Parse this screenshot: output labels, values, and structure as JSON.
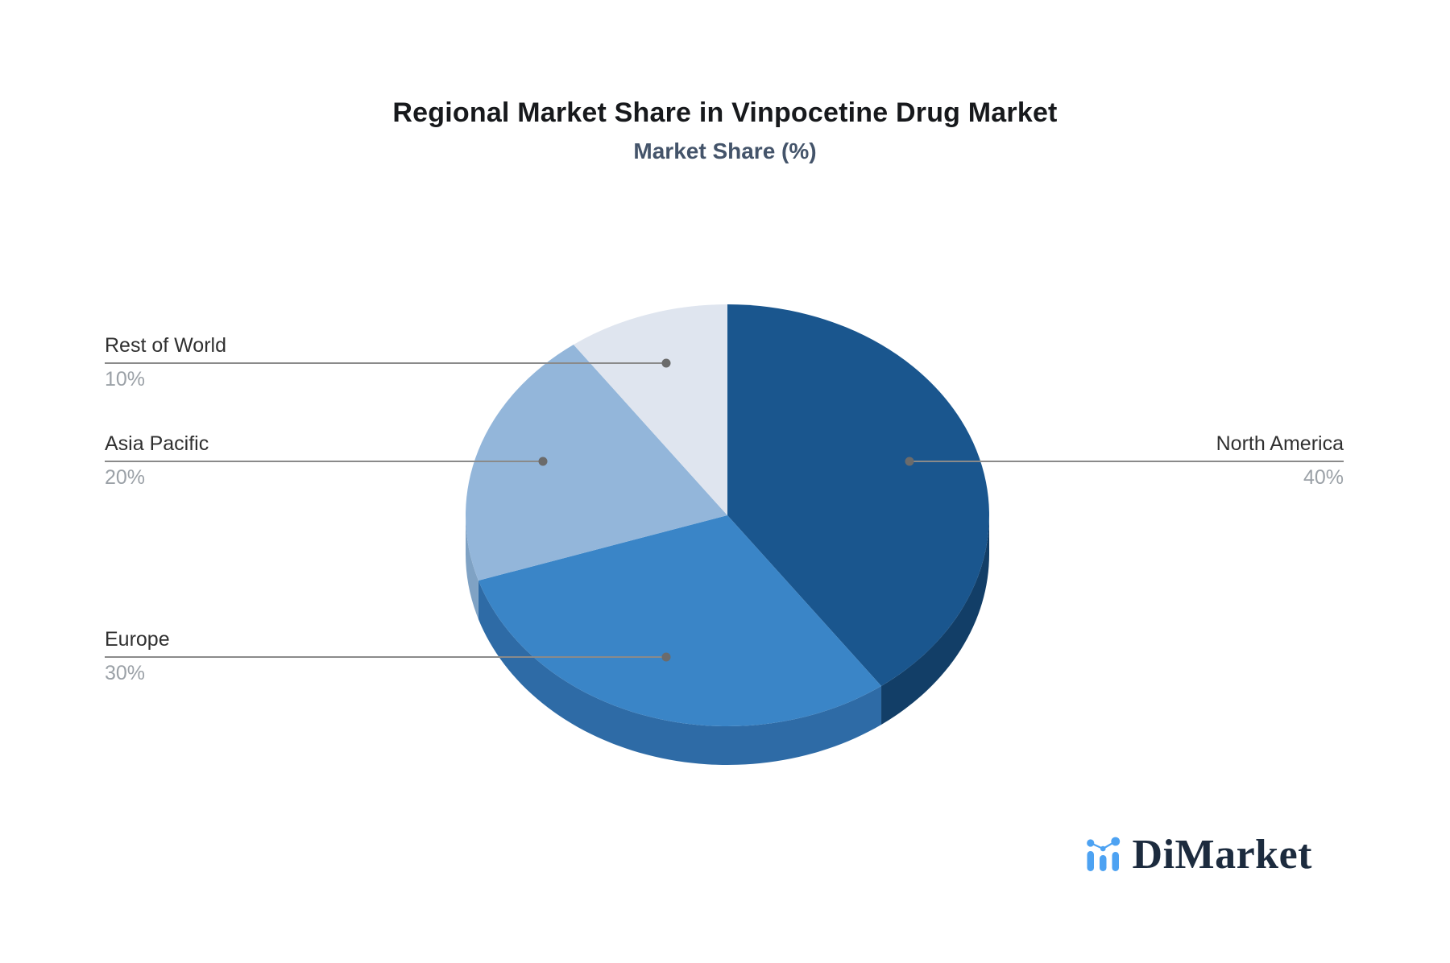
{
  "page": {
    "background": "#FFFFFF"
  },
  "header": {
    "title": "Regional Market Share in Vinpocetine Drug Market",
    "subtitle": "Market Share (%)"
  },
  "chart_data": {
    "type": "pie",
    "style": "3d",
    "title": "Regional Market Share in Vinpocetine Drug Market",
    "subtitle": "Market Share (%)",
    "unit": "%",
    "total": 100,
    "start_angle": "12-oclock",
    "direction": "clockwise",
    "legend": "none",
    "label_style": "callout-lines",
    "series": [
      {
        "name": "North America",
        "value": 40,
        "value_label": "40%",
        "color": "#1A568E",
        "side_color": "#123E67",
        "callout_side": "right"
      },
      {
        "name": "Europe",
        "value": 30,
        "value_label": "30%",
        "color": "#3A85C7",
        "side_color": "#2E6BA6",
        "callout_side": "left"
      },
      {
        "name": "Asia Pacific",
        "value": 20,
        "value_label": "20%",
        "color": "#93B6DA",
        "side_color": "#7FA2C4",
        "callout_side": "left"
      },
      {
        "name": "Rest of World",
        "value": 10,
        "value_label": "10%",
        "color": "#DFE5EF",
        "side_color": "#C9D3E2",
        "callout_side": "left"
      }
    ]
  },
  "branding": {
    "logo_text": "DiMarket",
    "logo_icon": "bar-line-chart-icon",
    "logo_text_color": "#1C2B3E",
    "logo_icon_color": "#4DA2F2"
  },
  "style": {
    "title_color": "#17191C",
    "subtitle_color": "#44546A",
    "label_color": "#303030",
    "value_color": "#9BA1A7",
    "line_color": "#8A8A8A",
    "dot_color": "#6B6B6B"
  }
}
